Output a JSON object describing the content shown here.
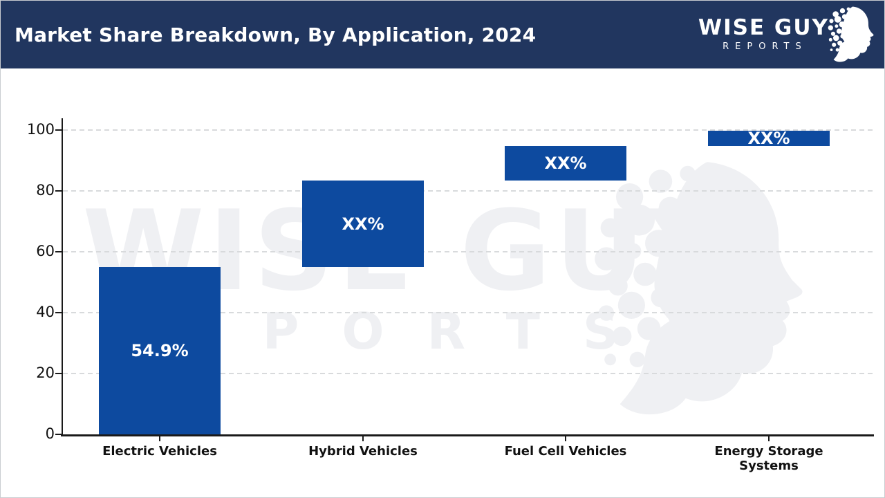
{
  "header": {
    "title": "Market Share Breakdown, By Application, 2024",
    "logo": {
      "line1": "WISE GUY",
      "line2": "REPORTS"
    }
  },
  "watermark": {
    "line1": "WISE GUY",
    "line2": "REPORTS"
  },
  "colors": {
    "header_bg": "#21365F",
    "bar_blue": "#0D4A9F",
    "axis": "#1A1A1A",
    "gridline": "#D8DADC",
    "watermark": "#EFF0F3",
    "panel_border": "#C9CDD1",
    "bar_label": "#FFFFFF"
  },
  "chart_data": {
    "type": "bar",
    "subtype": "waterfall",
    "title": "Market Share Breakdown, By Application, 2024",
    "categories": [
      "Electric Vehicles",
      "Hybrid Vehicles",
      "Fuel Cell Vehicles",
      "Energy Storage Systems"
    ],
    "segments": [
      {
        "category": "Electric Vehicles",
        "start": 0,
        "end": 54.9,
        "value": 54.9,
        "label": "54.9%",
        "value_estimated": false
      },
      {
        "category": "Hybrid Vehicles",
        "start": 54.9,
        "end": 83.3,
        "value": 28.4,
        "label": "XX%",
        "value_estimated": true
      },
      {
        "category": "Fuel Cell Vehicles",
        "start": 83.3,
        "end": 94.7,
        "value": 11.4,
        "label": "XX%",
        "value_estimated": true
      },
      {
        "category": "Energy Storage Systems",
        "start": 94.7,
        "end": 99.8,
        "value": 5.1,
        "label": "XX%",
        "value_estimated": true
      }
    ],
    "xlabel": "",
    "ylabel": "",
    "ylim": [
      0,
      100
    ],
    "yticks": [
      0,
      20,
      40,
      60,
      80,
      100
    ],
    "grid": "horizontal-dashed",
    "legend": "none",
    "bar_color": "#0D4A9F",
    "label_color": "#FFFFFF"
  }
}
